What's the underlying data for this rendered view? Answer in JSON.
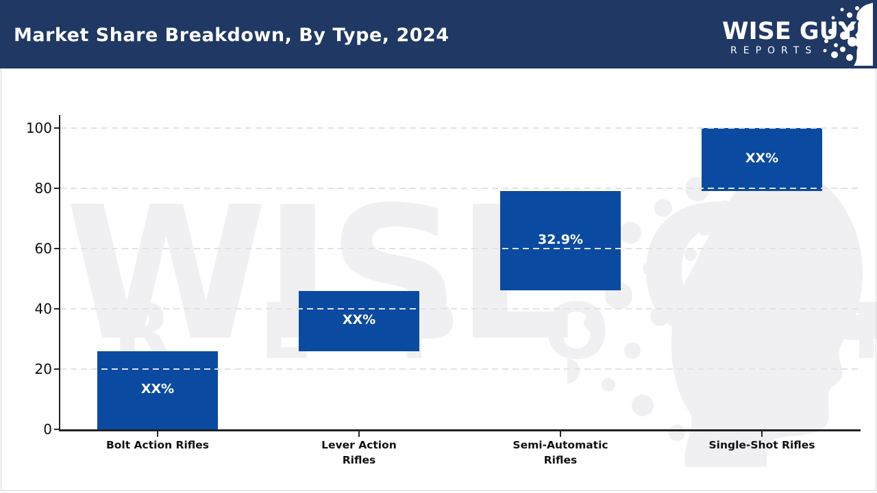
{
  "header": {
    "title": "Market Share Breakdown, By Type, 2024",
    "logo": {
      "line1": "WISE GUY",
      "line2": "REPORTS"
    }
  },
  "watermark": {
    "line1": "WISE GUY",
    "line2": "REPORTS"
  },
  "colors": {
    "header_bg": "#1f3864",
    "bar": "#0b4aa1",
    "bar_label": "#ffffff",
    "grid": "#e2e2e2",
    "axis": "#1f1f1f",
    "watermark": "#f0f0f2"
  },
  "chart_data": {
    "type": "bar",
    "subtype": "waterfall",
    "title": "Market Share Breakdown, By Type, 2024",
    "categories": [
      "Bolt Action Rifles",
      "Lever Action Rifles",
      "Semi-Automatic Rifles",
      "Single-Shot Rifles"
    ],
    "categories_display": [
      "Bolt Action Rifles",
      "Lever Action\nRifles",
      "Semi-Automatic\nRifles",
      "Single-Shot Rifles"
    ],
    "segments": [
      {
        "category": "Bolt Action Rifles",
        "start": 0,
        "end": 26,
        "label": "XX%"
      },
      {
        "category": "Lever Action Rifles",
        "start": 26,
        "end": 46,
        "label": "XX%"
      },
      {
        "category": "Semi-Automatic Rifles",
        "start": 46.1,
        "end": 79,
        "label": "32.9%",
        "value_pct": 32.9
      },
      {
        "category": "Single-Shot Rifles",
        "start": 79,
        "end": 100,
        "label": "XX%"
      }
    ],
    "yticks": [
      0,
      20,
      40,
      60,
      80,
      100
    ],
    "ylim": [
      0,
      104
    ],
    "xlabel": "",
    "ylabel": "",
    "grid": "horizontal dashed",
    "legend": "none"
  }
}
